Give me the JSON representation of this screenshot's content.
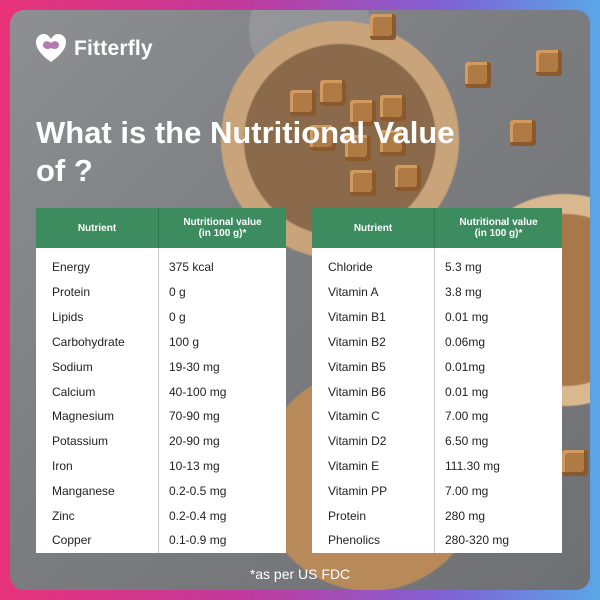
{
  "brand": {
    "name": "Fitterfly"
  },
  "title": "What is the Nutritional Value of ?",
  "table_header": {
    "nutrient": "Nutrient",
    "value_line1": "Nutritional value",
    "value_line2": "(in 100 g)*"
  },
  "left_rows": [
    {
      "nutrient": "Energy",
      "value": "375 kcal"
    },
    {
      "nutrient": "Protein",
      "value": "0 g"
    },
    {
      "nutrient": "Lipids",
      "value": "0 g"
    },
    {
      "nutrient": "Carbohydrate",
      "value": "100 g"
    },
    {
      "nutrient": "Sodium",
      "value": "19-30 mg"
    },
    {
      "nutrient": "Calcium",
      "value": "40-100 mg"
    },
    {
      "nutrient": "Magnesium",
      "value": "70-90 mg"
    },
    {
      "nutrient": "Potassium",
      "value": "20-90 mg"
    },
    {
      "nutrient": "Iron",
      "value": "10-13 mg"
    },
    {
      "nutrient": "Manganese",
      "value": "0.2-0.5 mg"
    },
    {
      "nutrient": "Zinc",
      "value": "0.2-0.4 mg"
    },
    {
      "nutrient": "Copper",
      "value": "0.1-0.9 mg"
    }
  ],
  "right_rows": [
    {
      "nutrient": "Chloride",
      "value": "5.3 mg"
    },
    {
      "nutrient": "Vitamin A",
      "value": "3.8 mg"
    },
    {
      "nutrient": "Vitamin B1",
      "value": "0.01 mg"
    },
    {
      "nutrient": "Vitamin B2",
      "value": "0.06mg"
    },
    {
      "nutrient": "Vitamin B5",
      "value": "0.01mg"
    },
    {
      "nutrient": "Vitamin B6",
      "value": "0.01 mg"
    },
    {
      "nutrient": "Vitamin C",
      "value": "7.00 mg"
    },
    {
      "nutrient": "Vitamin D2",
      "value": "6.50 mg"
    },
    {
      "nutrient": "Vitamin E",
      "value": "111.30 mg"
    },
    {
      "nutrient": "Vitamin PP",
      "value": "7.00 mg"
    },
    {
      "nutrient": "Protein",
      "value": "280 mg"
    },
    {
      "nutrient": "Phenolics",
      "value": "280-320 mg"
    }
  ],
  "footnote": "*as per US FDC",
  "colors": {
    "header_green": "#3d8c60",
    "gradient_pink": "#e8337a",
    "gradient_blue": "#5aa6e6",
    "sugar_brown": "#b07a45"
  },
  "icons": {
    "logo": "heart-butterfly-icon"
  }
}
